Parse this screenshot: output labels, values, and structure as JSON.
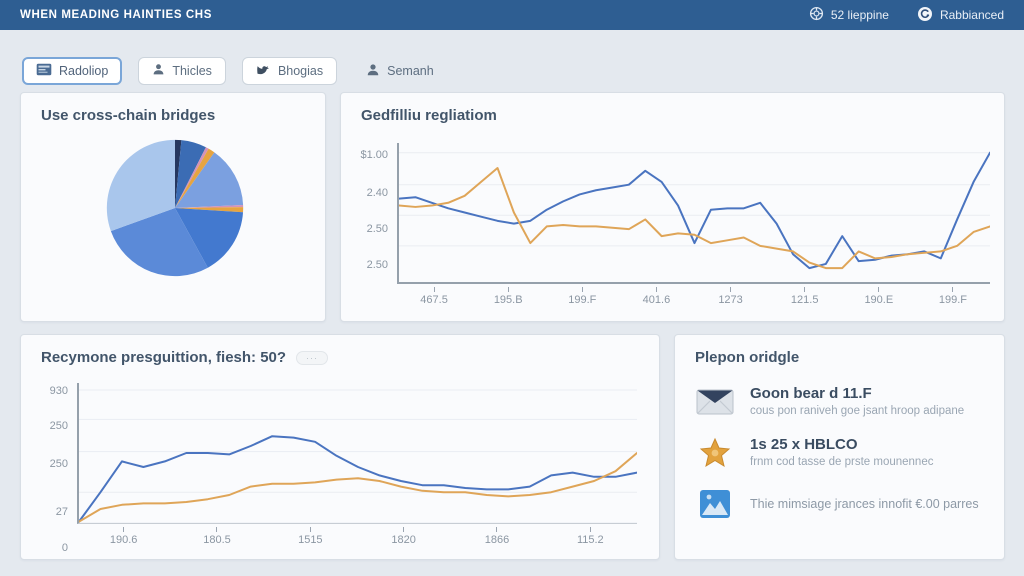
{
  "header": {
    "title": "WHEN MEADING HAINTIES CHS",
    "nav": [
      {
        "icon": "lifering-icon",
        "label": "52 lieppine"
      },
      {
        "icon": "badge-icon",
        "label": "Rabbianced"
      }
    ]
  },
  "toolbar": {
    "buttons": [
      {
        "icon": "dashboard-icon",
        "label": "Radoliop",
        "active": true
      },
      {
        "icon": "person-icon",
        "label": "Thicles"
      },
      {
        "icon": "bird-icon",
        "label": "Bhogias"
      },
      {
        "icon": "person-icon",
        "label": "Semanh"
      }
    ]
  },
  "panel": {
    "title": "Plepon oridgle",
    "items": [
      {
        "icon": "envelope-icon",
        "title": "Goon bear d 11.F",
        "subtitle": "cous pon raniveh goe jsant hroop adipane"
      },
      {
        "icon": "star-icon",
        "title": "1s 25 x HBLCO",
        "subtitle": "frnm cod tasse de prste mounennec"
      },
      {
        "icon": "image-icon",
        "text": "Thie mimsiage jrances innofit €.00 parres"
      }
    ]
  },
  "forecast_badge": "···",
  "colors": {
    "header_bg": "#2e5e92",
    "page_bg": "#e4e9ef",
    "card_bg": "#fafbfd",
    "series_blue": "#4a74c0",
    "series_orange": "#dfa558"
  },
  "chart_data": [
    {
      "id": "bridges-pie",
      "type": "pie",
      "title": "Use cross-chain bridges",
      "legend": "none",
      "slices": [
        {
          "label": "navy-sliver",
          "value": 1.5,
          "color": "#26375f"
        },
        {
          "label": "steel-blue",
          "value": 6.0,
          "color": "#3b6cb4"
        },
        {
          "label": "pink-sliver",
          "value": 0.7,
          "color": "#d493b8"
        },
        {
          "label": "orange-sliver-1",
          "value": 1.6,
          "color": "#e6a440"
        },
        {
          "label": "periwinkle",
          "value": 14.5,
          "color": "#7ba0e0"
        },
        {
          "label": "pink-sliver-2",
          "value": 0.5,
          "color": "#d493b8"
        },
        {
          "label": "orange-sliver-2",
          "value": 1.2,
          "color": "#e6a440"
        },
        {
          "label": "medium-blue",
          "value": 16.0,
          "color": "#4379cf"
        },
        {
          "label": "royal-blue",
          "value": 27.5,
          "color": "#5b8ad8"
        },
        {
          "label": "light-blue",
          "value": 30.5,
          "color": "#a9c6ec"
        }
      ]
    },
    {
      "id": "regulation-line",
      "type": "line",
      "title": "Gedfilliu regliatiom",
      "grid": true,
      "legend": "none",
      "yticks": [
        "$1.00",
        "2.40",
        "2.50",
        "2.50"
      ],
      "ytick_pos": [
        7,
        30,
        52,
        74
      ],
      "xticks": [
        "467.5",
        "195.B",
        "199.F",
        "401.6",
        "1273",
        "121.5",
        "190.E",
        "199.F"
      ],
      "values_unit": "fraction_of_plot_height",
      "series": [
        {
          "name": "blue",
          "color": "#4a74c0",
          "values": [
            0.6,
            0.61,
            0.57,
            0.53,
            0.5,
            0.47,
            0.44,
            0.42,
            0.44,
            0.52,
            0.58,
            0.63,
            0.66,
            0.68,
            0.7,
            0.8,
            0.72,
            0.55,
            0.28,
            0.52,
            0.53,
            0.53,
            0.57,
            0.42,
            0.2,
            0.1,
            0.13,
            0.33,
            0.15,
            0.16,
            0.19,
            0.2,
            0.22,
            0.17,
            0.45,
            0.72,
            0.93
          ]
        },
        {
          "name": "orange",
          "color": "#dfa558",
          "values": [
            0.55,
            0.54,
            0.55,
            0.57,
            0.62,
            0.72,
            0.82,
            0.5,
            0.28,
            0.4,
            0.41,
            0.4,
            0.4,
            0.39,
            0.38,
            0.45,
            0.33,
            0.35,
            0.34,
            0.28,
            0.3,
            0.32,
            0.26,
            0.24,
            0.22,
            0.14,
            0.1,
            0.1,
            0.22,
            0.17,
            0.18,
            0.2,
            0.21,
            0.22,
            0.26,
            0.36,
            0.4
          ]
        }
      ]
    },
    {
      "id": "forecast-line",
      "type": "line",
      "title": "Recymone presguittion, fiesh: 50?",
      "grid": true,
      "legend": "none",
      "yticks": [
        "930",
        "250",
        "250",
        "27",
        "0"
      ],
      "ytick_pos": [
        5,
        26,
        49,
        78,
        100
      ],
      "xticks": [
        "190.6",
        "180.5",
        "1515",
        "1820",
        "1866",
        "115.2"
      ],
      "values_unit": "fraction_of_plot_height",
      "series": [
        {
          "name": "blue",
          "color": "#4a74c0",
          "values": [
            0.01,
            0.22,
            0.44,
            0.4,
            0.44,
            0.5,
            0.5,
            0.49,
            0.55,
            0.62,
            0.61,
            0.58,
            0.48,
            0.4,
            0.34,
            0.3,
            0.27,
            0.27,
            0.25,
            0.24,
            0.24,
            0.26,
            0.34,
            0.36,
            0.33,
            0.33,
            0.36
          ]
        },
        {
          "name": "orange",
          "color": "#dfa558",
          "values": [
            0.01,
            0.1,
            0.13,
            0.14,
            0.14,
            0.15,
            0.17,
            0.2,
            0.26,
            0.28,
            0.28,
            0.29,
            0.31,
            0.32,
            0.3,
            0.26,
            0.23,
            0.22,
            0.22,
            0.2,
            0.19,
            0.2,
            0.22,
            0.26,
            0.3,
            0.37,
            0.5
          ]
        }
      ]
    }
  ]
}
